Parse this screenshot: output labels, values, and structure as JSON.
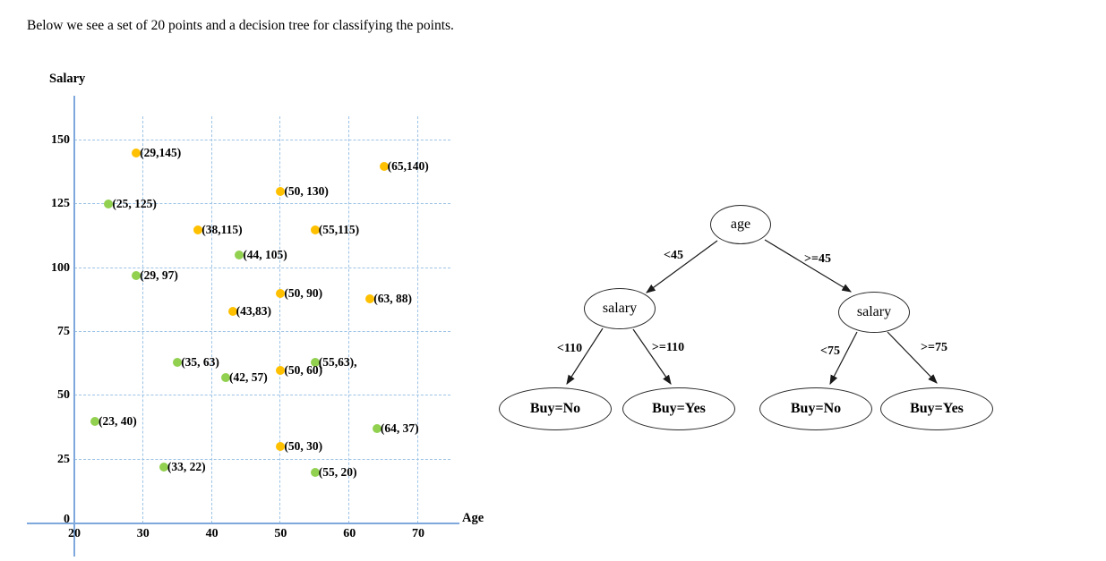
{
  "title": "Below we see a set of 20 points and a decision tree for classifying the points.",
  "colors": {
    "yellow": "#FFC000",
    "green": "#92D050",
    "grid": "#9DC3E6",
    "axis": "#7FA8DC"
  },
  "chart_data": {
    "type": "scatter",
    "title": "",
    "xlabel": "Age",
    "ylabel": "Salary",
    "xlim": [
      20,
      76
    ],
    "ylim": [
      0,
      160
    ],
    "x_ticks": [
      20,
      30,
      40,
      50,
      60,
      70
    ],
    "y_ticks": [
      0,
      25,
      50,
      75,
      100,
      125,
      150
    ],
    "grid": "dashed",
    "legend": "none",
    "points": [
      {
        "x": 29,
        "y": 145,
        "label": "(29,145)",
        "series": "yellow"
      },
      {
        "x": 25,
        "y": 125,
        "label": "(25, 125)",
        "series": "green"
      },
      {
        "x": 50,
        "y": 130,
        "label": "(50, 130)",
        "series": "yellow"
      },
      {
        "x": 65,
        "y": 140,
        "label": "(65,140)",
        "series": "yellow"
      },
      {
        "x": 38,
        "y": 115,
        "label": "(38,115)",
        "series": "yellow"
      },
      {
        "x": 55,
        "y": 115,
        "label": "(55,115)",
        "series": "yellow"
      },
      {
        "x": 44,
        "y": 105,
        "label": "(44, 105)",
        "series": "green"
      },
      {
        "x": 29,
        "y": 97,
        "label": "(29, 97)",
        "series": "green"
      },
      {
        "x": 50,
        "y": 90,
        "label": "(50, 90)",
        "series": "yellow"
      },
      {
        "x": 63,
        "y": 88,
        "label": "(63, 88)",
        "series": "yellow"
      },
      {
        "x": 43,
        "y": 83,
        "label": "(43,83)",
        "series": "yellow"
      },
      {
        "x": 35,
        "y": 63,
        "label": "(35, 63)",
        "series": "green"
      },
      {
        "x": 55,
        "y": 63,
        "label": "(55,63),",
        "series": "green"
      },
      {
        "x": 42,
        "y": 57,
        "label": "(42, 57)",
        "series": "green"
      },
      {
        "x": 50,
        "y": 60,
        "label": "(50, 60)",
        "series": "yellow"
      },
      {
        "x": 23,
        "y": 40,
        "label": "(23, 40)",
        "series": "green"
      },
      {
        "x": 64,
        "y": 37,
        "label": "(64, 37)",
        "series": "green"
      },
      {
        "x": 50,
        "y": 30,
        "label": "(50, 30)",
        "series": "yellow"
      },
      {
        "x": 33,
        "y": 22,
        "label": "(33, 22)",
        "series": "green"
      },
      {
        "x": 55,
        "y": 20,
        "label": "(55, 20)",
        "series": "green"
      }
    ]
  },
  "tree": {
    "nodes": {
      "root": "age",
      "left": "salary",
      "right": "salary",
      "leaf1": "Buy=No",
      "leaf2": "Buy=Yes",
      "leaf3": "Buy=No",
      "leaf4": "Buy=Yes"
    },
    "edge_labels": {
      "root_left": "<45",
      "root_right": ">=45",
      "left_lt": "<110",
      "left_ge": ">=110",
      "right_lt": "<75",
      "right_ge": ">=75"
    }
  }
}
